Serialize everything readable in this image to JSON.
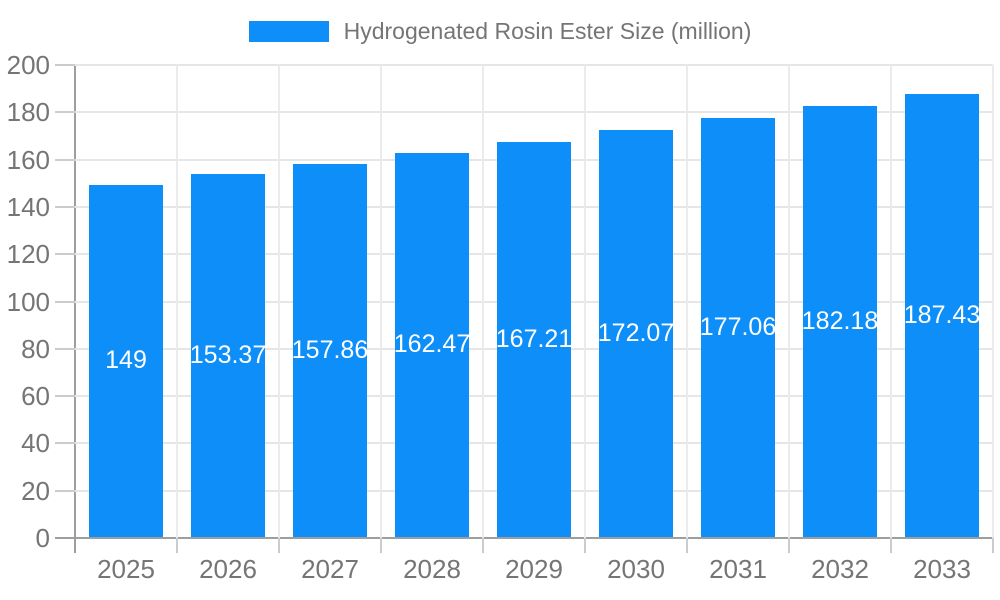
{
  "chart_data": {
    "type": "bar",
    "title": "",
    "legend_label": "Hydrogenated Rosin Ester Size (million)",
    "legend_position": "top",
    "categories": [
      "2025",
      "2026",
      "2027",
      "2028",
      "2029",
      "2030",
      "2031",
      "2032",
      "2033"
    ],
    "values": [
      149,
      153.37,
      157.86,
      162.47,
      167.21,
      172.07,
      177.06,
      182.18,
      187.43
    ],
    "value_labels": [
      "149",
      "153.37",
      "157.86",
      "162.47",
      "167.21",
      "172.07",
      "177.06",
      "182.18",
      "187.43"
    ],
    "xlabel": "",
    "ylabel": "",
    "ylim": [
      0,
      200
    ],
    "yticks": [
      0,
      20,
      40,
      60,
      80,
      100,
      120,
      140,
      160,
      180,
      200
    ],
    "ytick_labels": [
      "0",
      "20",
      "40",
      "60",
      "80",
      "100",
      "120",
      "140",
      "160",
      "180",
      "200"
    ],
    "grid": "horizontal gridlines every 20 units, vertical gridlines at category boundaries",
    "colors": {
      "bar": "#0d8ef8",
      "axis": "#9e9e9e",
      "grid_h": "#e6e6e6",
      "grid_v": "#ebebeb",
      "tick": "#cccccc",
      "axis_text": "#757575",
      "bar_label_text": "#ffffff",
      "background": "#ffffff"
    }
  }
}
